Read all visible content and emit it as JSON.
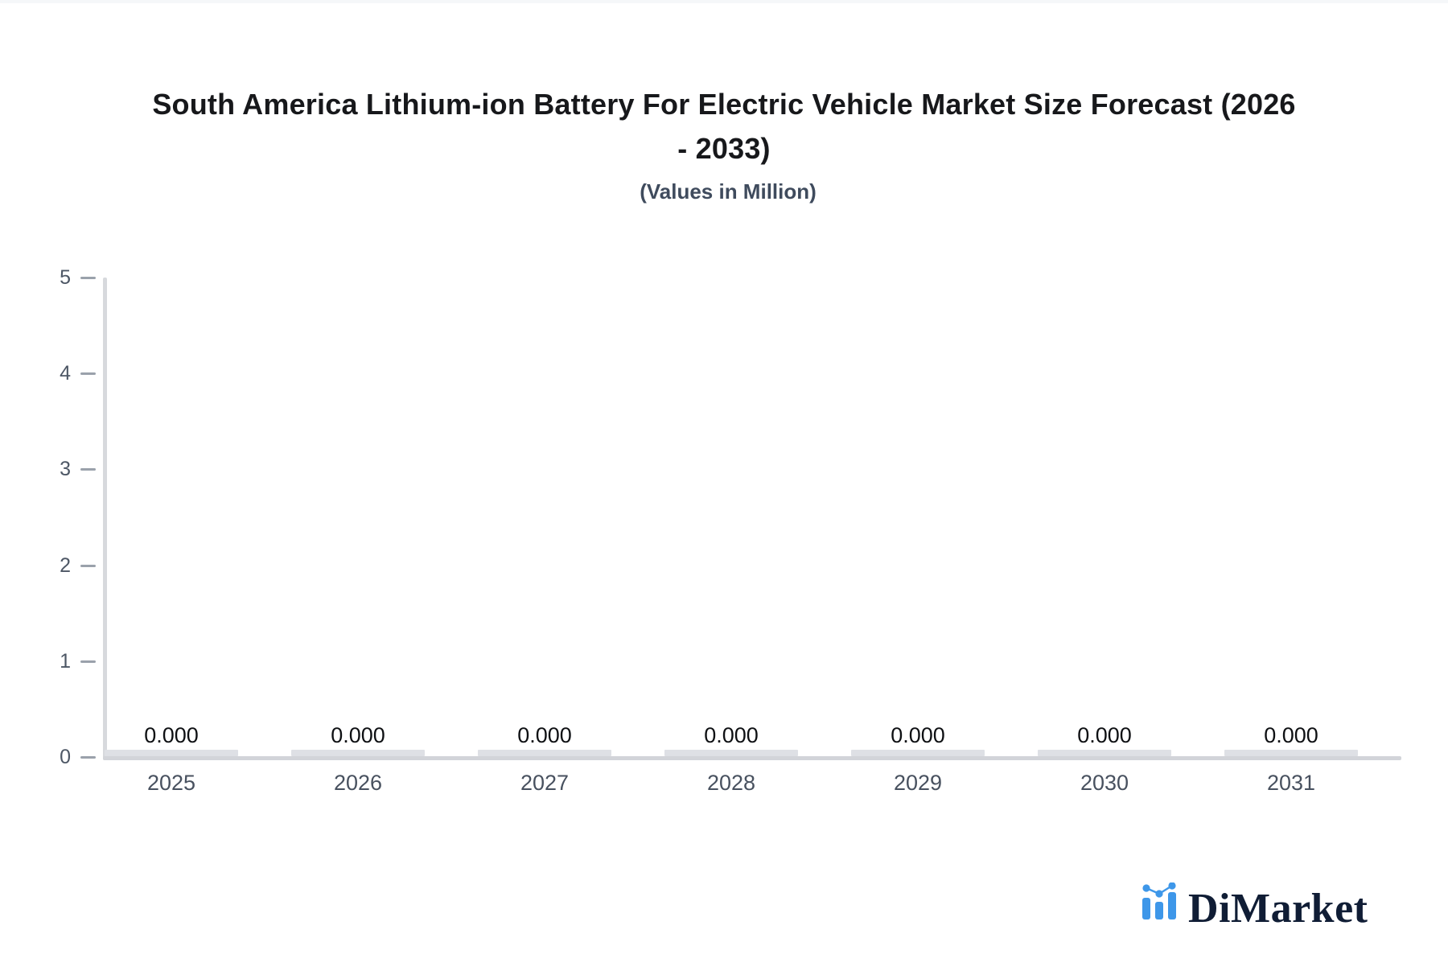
{
  "header": {
    "title_line1": "South America Lithium-ion Battery For Electric Vehicle Market Size Forecast (2026",
    "title_line2": "- 2033)",
    "subtitle": "(Values in Million)"
  },
  "chart_data": {
    "type": "bar",
    "title": "South America Lithium-ion Battery For Electric Vehicle Market Size Forecast (2026 - 2033)",
    "subtitle": "(Values in Million)",
    "categories": [
      "2025",
      "2026",
      "2027",
      "2028",
      "2029",
      "2030",
      "2031"
    ],
    "values": [
      0,
      0,
      0,
      0,
      0,
      0,
      0
    ],
    "value_labels": [
      "0.000",
      "0.000",
      "0.000",
      "0.000",
      "0.000",
      "0.000",
      "0.000"
    ],
    "xlabel": "",
    "ylabel": "",
    "ylim": [
      0,
      5
    ],
    "y_ticks": [
      "5",
      "4",
      "3",
      "2",
      "1",
      "0"
    ],
    "grid": false,
    "legend": "none",
    "bar_color": "#dee0e5",
    "axis_color": "#d2d4d9",
    "tick_color": "#9aa1ab",
    "tick_label_color": "#4d5765",
    "x_label_color": "#48515f",
    "value_label_color": "#0e1013"
  },
  "logo": {
    "text": "DiMarket",
    "icon": "bar-chart-trend-icon",
    "icon_color": "#3e97e9",
    "text_color": "#101d35"
  }
}
